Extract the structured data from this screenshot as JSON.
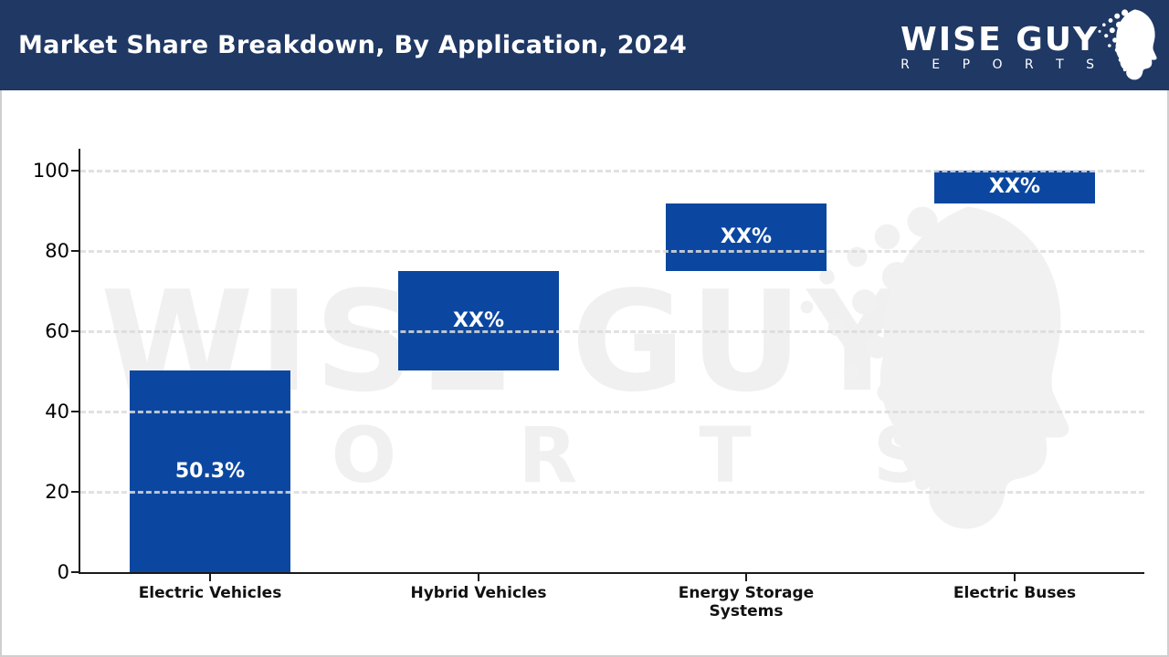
{
  "header": {
    "title": "Market Share Breakdown, By Application, 2024",
    "bg_color": "#1f3864"
  },
  "logo": {
    "line1": "WISE GUY",
    "line2": "R E P O R T S"
  },
  "watermark": {
    "line1": "WISE GUY",
    "line2": "P O R T S"
  },
  "chart_data": {
    "type": "bar",
    "subtype": "waterfall",
    "title": "Market Share Breakdown, By Application, 2024",
    "xlabel": "",
    "ylabel": "",
    "categories": [
      "Electric Vehicles",
      "Hybrid Vehicles",
      "Energy Storage Systems",
      "Electric Buses"
    ],
    "segments": [
      {
        "category": "Electric Vehicles",
        "start": 0,
        "end": 50.3,
        "label": "50.3%"
      },
      {
        "category": "Hybrid Vehicles",
        "start": 50.3,
        "end": 75,
        "label": "XX%"
      },
      {
        "category": "Energy Storage Systems",
        "start": 75,
        "end": 91.9,
        "label": "XX%"
      },
      {
        "category": "Electric Buses",
        "start": 91.9,
        "end": 100,
        "label": "XX%"
      }
    ],
    "yticks": [
      0,
      20,
      40,
      60,
      80,
      100
    ],
    "ylim": [
      0,
      105
    ],
    "grid": "horizontal-dashed",
    "legend": "none",
    "bar_color": "#0b47a0",
    "bar_label_color": "#ffffff",
    "axis_color": "#1a1a1a",
    "gridline_color": "#dcdcdc"
  }
}
